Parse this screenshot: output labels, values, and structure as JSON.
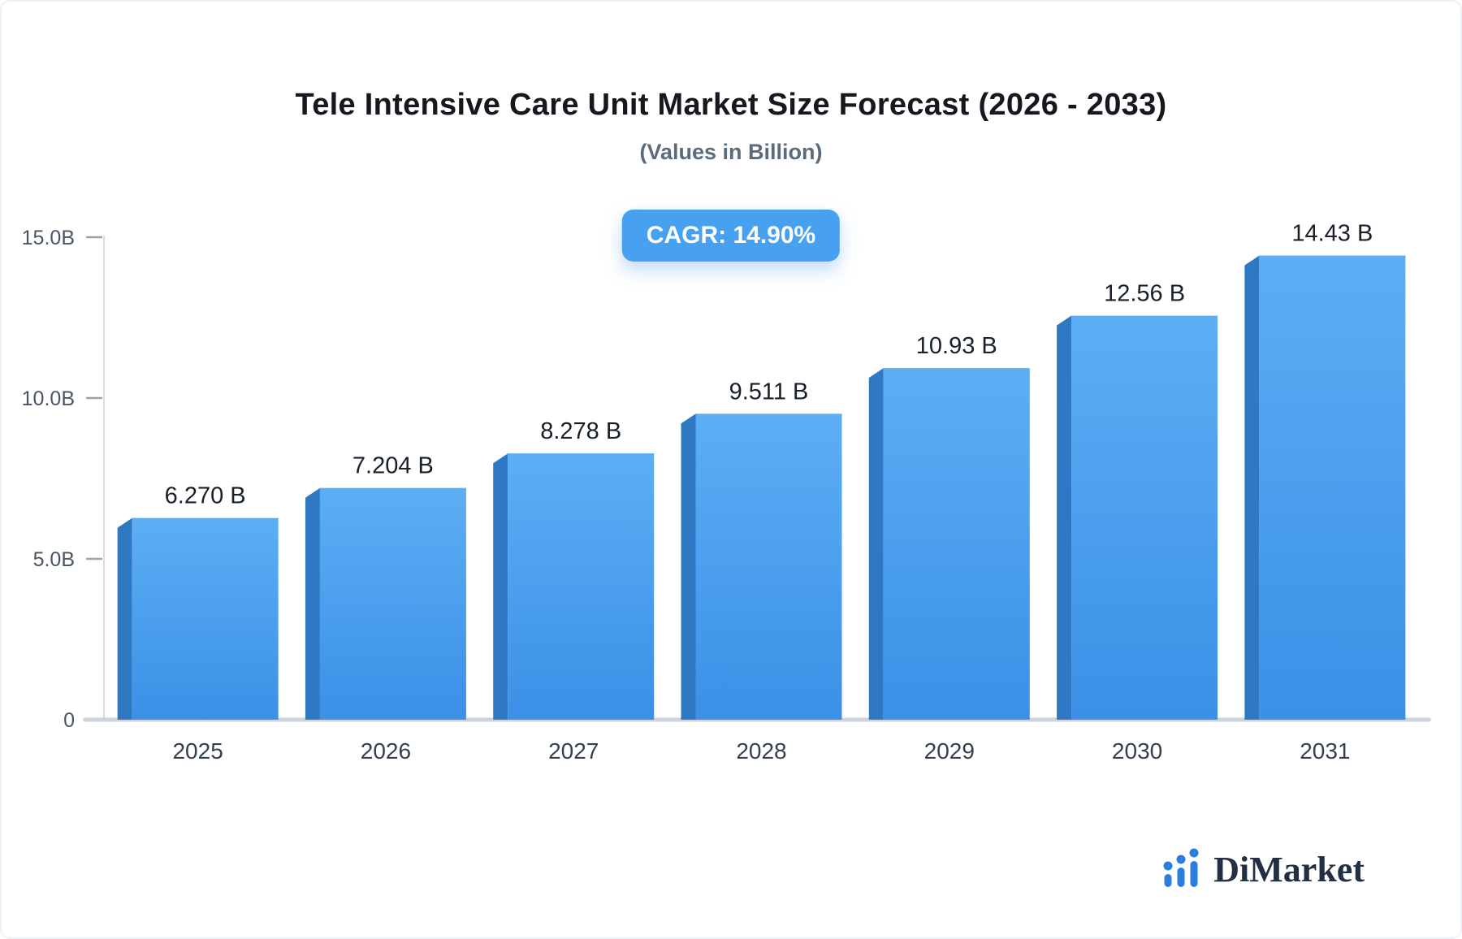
{
  "chart_data": {
    "type": "bar",
    "title": "Tele Intensive Care Unit Market Size Forecast (2026 - 2033)",
    "subtitle": "(Values in Billion)",
    "cagr_badge": "CAGR: 14.90%",
    "categories": [
      "2025",
      "2026",
      "2027",
      "2028",
      "2029",
      "2030",
      "2031"
    ],
    "values": [
      6.27,
      7.204,
      8.278,
      9.511,
      10.93,
      12.56,
      14.43
    ],
    "value_labels": [
      "6.270 B",
      "7.204 B",
      "8.278 B",
      "9.511 B",
      "10.93 B",
      "12.56 B",
      "14.43 B"
    ],
    "ylim": [
      0,
      15
    ],
    "yticks": [
      {
        "value": 0,
        "label": "0"
      },
      {
        "value": 5,
        "label": "5.0B"
      },
      {
        "value": 10,
        "label": "10.0B"
      },
      {
        "value": 15,
        "label": "15.0B"
      }
    ],
    "grid": false,
    "legend": "none",
    "colors": {
      "bar_top": "#5caef4",
      "bar_bottom": "#3b90e7",
      "bar_side": "#2e78c4",
      "axis_line": "#d8dde4",
      "baseline": "#cdd4de",
      "badge": "#47a0f0"
    }
  },
  "brand": {
    "name": "DiMarket",
    "accent": "#2b7de0"
  }
}
